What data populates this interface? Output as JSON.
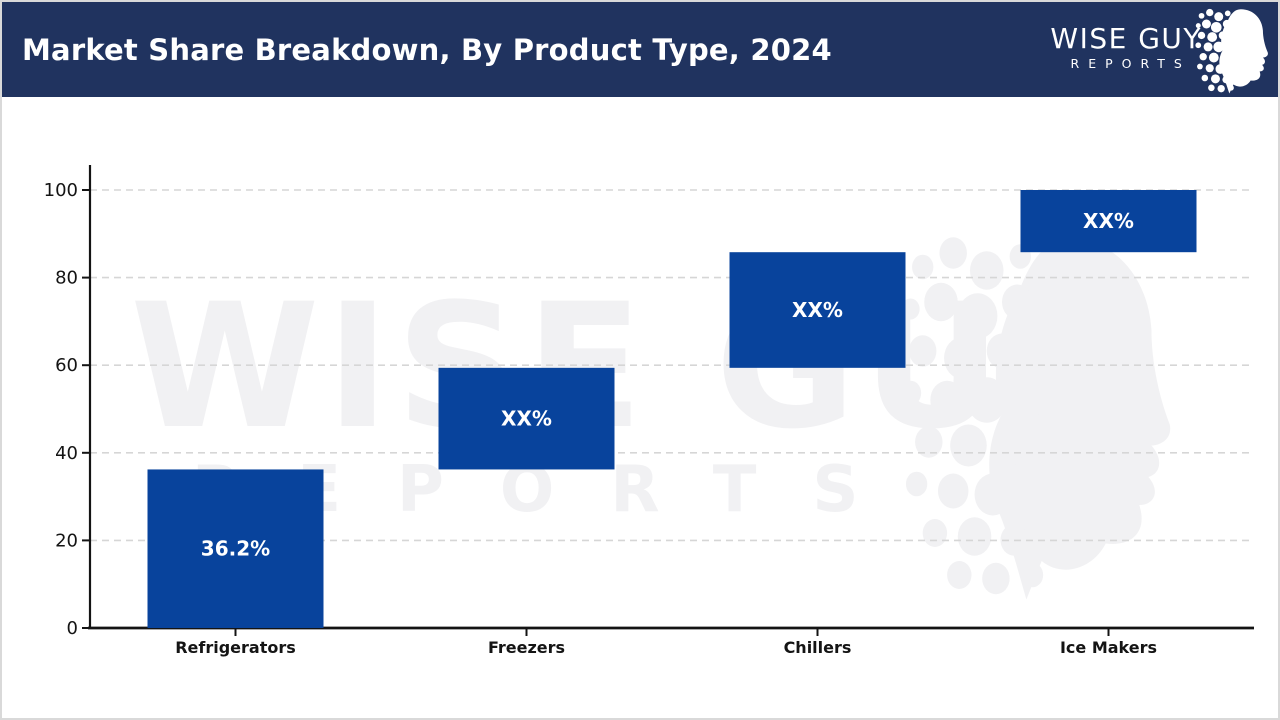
{
  "header": {
    "title": "Market Share Breakdown, By Product Type, 2024",
    "bg_color": "#20335f",
    "logo": {
      "line1": "WISE GUY",
      "line2": "REPORTS"
    }
  },
  "watermark": {
    "line1": "WISE GUY",
    "line2": "REPORTS"
  },
  "chart_data": {
    "type": "bar",
    "subtype": "waterfall",
    "title": "Market Share Breakdown, By Product Type, 2024",
    "categories": [
      "Refrigerators",
      "Freezers",
      "Chillers",
      "Ice Makers"
    ],
    "segments": [
      {
        "category": "Refrigerators",
        "start": 0,
        "end": 36.2,
        "label": "36.2%"
      },
      {
        "category": "Freezers",
        "start": 36.2,
        "end": 59.4,
        "label": "XX%"
      },
      {
        "category": "Chillers",
        "start": 59.4,
        "end": 85.8,
        "label": "XX%"
      },
      {
        "category": "Ice Makers",
        "start": 85.8,
        "end": 100,
        "label": "XX%"
      }
    ],
    "yticks": [
      0,
      20,
      40,
      60,
      80,
      100
    ],
    "ylim": [
      0,
      105
    ],
    "xlabel": "",
    "ylabel": "",
    "grid": "horizontal-dashed",
    "legend": "none",
    "bar_color": "#08439c",
    "value_label_color": "#ffffff"
  }
}
